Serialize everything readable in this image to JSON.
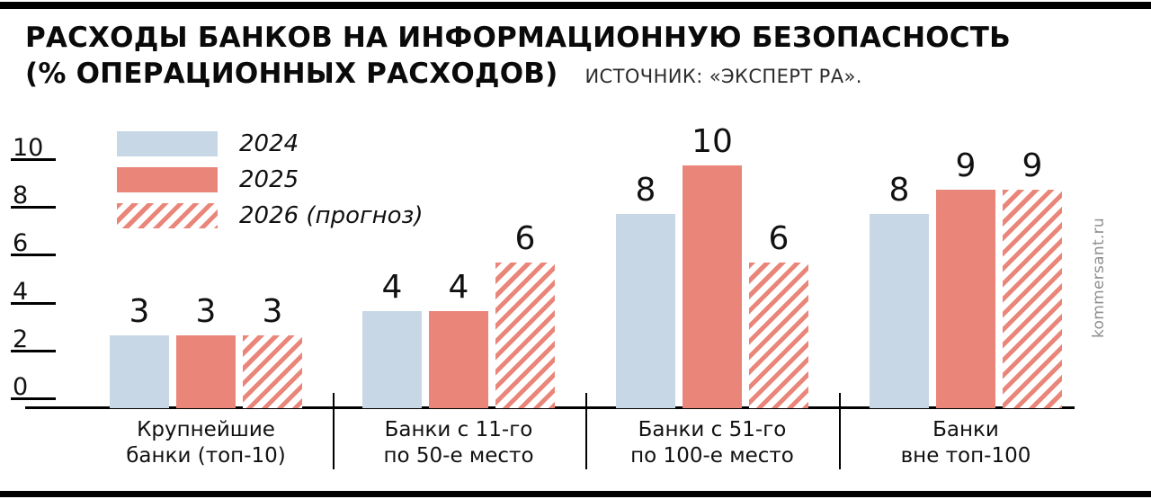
{
  "page": {
    "title_line1": "РАСХОДЫ БАНКОВ НА ИНФОРМАЦИОННУЮ БЕЗОПАСНОСТЬ",
    "title_line2": "(% ОПЕРАЦИОННЫХ РАСХОДОВ)",
    "source": "ИСТОЧНИК: «ЭКСПЕРТ РА».",
    "watermark": "kommersant.ru"
  },
  "colors": {
    "bar_2024": "#c8d7e6",
    "bar_2025": "#ea8679",
    "bar_2026_hatch": "#ea8679",
    "axis": "#000000",
    "watermark": "#8f8f8f"
  },
  "legend": {
    "items": [
      {
        "label": "2024",
        "swatch": "blue"
      },
      {
        "label": "2025",
        "swatch": "red"
      },
      {
        "label": "2026 (прогноз)",
        "swatch": "hatch"
      }
    ]
  },
  "chart_data": {
    "type": "bar",
    "title": "РАСХОДЫ БАНКОВ НА ИНФОРМАЦИОННУЮ БЕЗОПАСНОСТЬ (% ОПЕРАЦИОННЫХ РАСХОДОВ)",
    "source": "ИСТОЧНИК: «ЭКСПЕРТ РА».",
    "ylabel": "% операционных расходов",
    "categories": [
      "Крупнейшие банки (топ-10)",
      "Банки с 11-го по 50-е место",
      "Банки с 51-го по 100-е место",
      "Банки вне топ-100"
    ],
    "category_lines": [
      [
        "Крупнейшие",
        "банки (топ-10)"
      ],
      [
        "Банки с 11-го",
        "по 50-е место"
      ],
      [
        "Банки с 51-го",
        "по 100-е место"
      ],
      [
        "Банки",
        "вне топ-100"
      ]
    ],
    "series": [
      {
        "name": "2024",
        "values": [
          3,
          4,
          8,
          8
        ]
      },
      {
        "name": "2025",
        "values": [
          3,
          4,
          10,
          9
        ]
      },
      {
        "name": "2026 (прогноз)",
        "values": [
          3,
          6,
          6,
          9
        ]
      }
    ],
    "ylim": [
      0,
      10
    ],
    "yticks": [
      0,
      2,
      4,
      6,
      8,
      10
    ],
    "grid": false,
    "legend_position": "top-left"
  }
}
